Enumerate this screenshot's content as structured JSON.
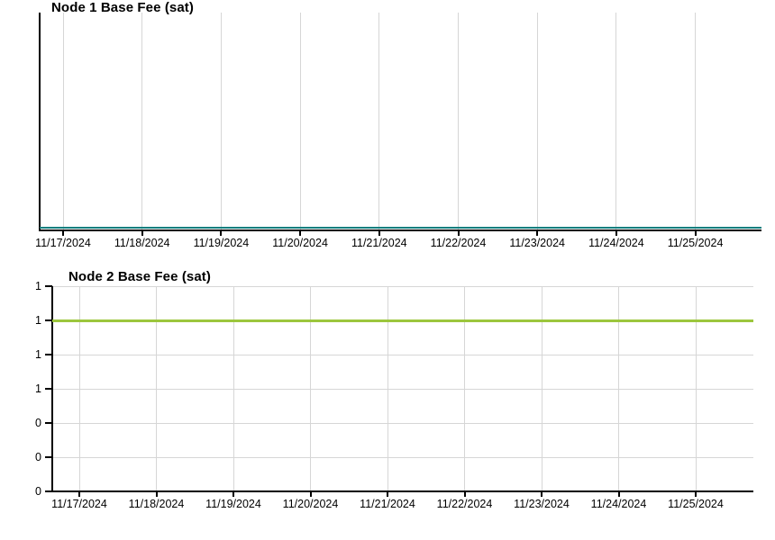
{
  "chart_data": [
    {
      "type": "line",
      "title": "Node 1 Base Fee (sat)",
      "x": [
        "11/17/2024",
        "11/18/2024",
        "11/19/2024",
        "11/20/2024",
        "11/21/2024",
        "11/22/2024",
        "11/23/2024",
        "11/24/2024",
        "11/25/2024"
      ],
      "series": [
        {
          "name": "Node 1 Base Fee",
          "values": [
            0,
            0,
            0,
            0,
            0,
            0,
            0,
            0,
            0
          ],
          "color": "#0F7F7F"
        }
      ],
      "xlabel": "",
      "ylabel": "",
      "ylim": [
        0,
        1
      ],
      "y_ticks": [],
      "grid": "vertical-only",
      "legend": "none"
    },
    {
      "type": "line",
      "title": "Node 2 Base Fee (sat)",
      "x": [
        "11/17/2024",
        "11/18/2024",
        "11/19/2024",
        "11/20/2024",
        "11/21/2024",
        "11/22/2024",
        "11/23/2024",
        "11/24/2024",
        "11/25/2024"
      ],
      "series": [
        {
          "name": "Node 2 Base Fee",
          "values": [
            1,
            1,
            1,
            1,
            1,
            1,
            1,
            1,
            1
          ],
          "color": "#9CC63D"
        }
      ],
      "xlabel": "",
      "ylabel": "",
      "ylim": [
        0,
        1.2
      ],
      "y_ticks": [
        {
          "value": 1.2,
          "label": "1"
        },
        {
          "value": 1.0,
          "label": "1"
        },
        {
          "value": 0.8,
          "label": "1"
        },
        {
          "value": 0.6,
          "label": "1"
        },
        {
          "value": 0.4,
          "label": "0"
        },
        {
          "value": 0.2,
          "label": "0"
        },
        {
          "value": 0.0,
          "label": "0"
        }
      ],
      "grid": "both",
      "legend": "none"
    }
  ]
}
